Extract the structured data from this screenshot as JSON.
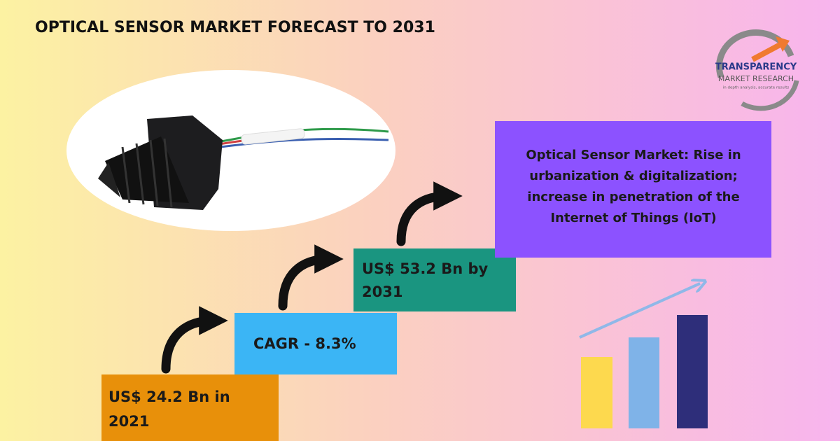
{
  "header": {
    "title": "OPTICAL SENSOR MARKET FORECAST TO 2031"
  },
  "logo": {
    "name": "TRANSPARENCY",
    "subname": "MARKET RESEARCH",
    "tagline": "in depth analysis, accurate results"
  },
  "steps": [
    {
      "lines": [
        "US$ 24.2 Bn in",
        "2021"
      ]
    },
    {
      "lines": [
        "CAGR - 8.3%"
      ]
    },
    {
      "lines": [
        "US$ 53.2 Bn by",
        "2031"
      ]
    }
  ],
  "highlight": {
    "lines": [
      "Optical Sensor Market: Rise in",
      "urbanization & digitalization;",
      "increase in penetration of the",
      "Internet of Things (IoT)"
    ]
  }
}
